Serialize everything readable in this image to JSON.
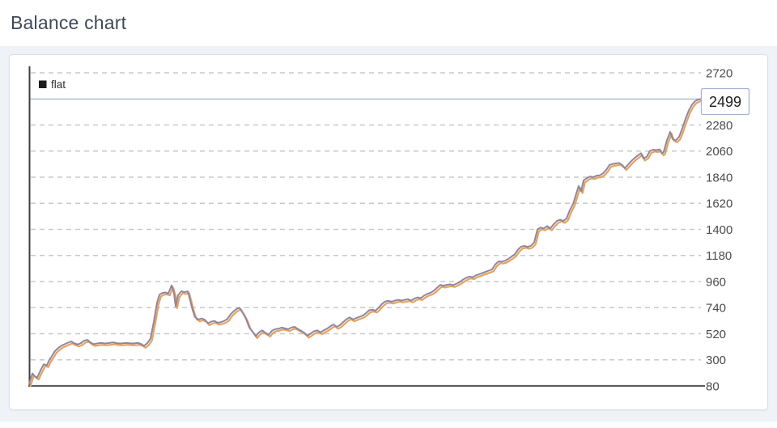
{
  "page": {
    "title": "Balance chart"
  },
  "chart": {
    "legend": [
      {
        "label": "flat",
        "swatch_color": "#1c1c1c"
      }
    ],
    "current_value": "2499"
  },
  "chart_data": {
    "type": "line",
    "title": "Balance chart",
    "legend_position": "top-left",
    "axis_labels_position": "right",
    "grid": "dashed-horizontal",
    "y_min": 80,
    "y_max": 2720,
    "y_tick_step": 220,
    "y_ticks": [
      80,
      300,
      520,
      740,
      960,
      1180,
      1400,
      1620,
      1840,
      2060,
      2280,
      2720
    ],
    "current_value": 2499,
    "current_value_line_color": "#a9b0d4",
    "series": [
      {
        "name": "flat",
        "color": "#8e86a1",
        "shadow_color": "#e5a35e",
        "points": [
          [
            36,
            95
          ],
          [
            40,
            185
          ],
          [
            43,
            162
          ],
          [
            46,
            150
          ],
          [
            50,
            210
          ],
          [
            54,
            262
          ],
          [
            58,
            255
          ],
          [
            61,
            300
          ],
          [
            64,
            330
          ],
          [
            68,
            375
          ],
          [
            72,
            400
          ],
          [
            76,
            420
          ],
          [
            80,
            432
          ],
          [
            84,
            445
          ],
          [
            88,
            455
          ],
          [
            92,
            438
          ],
          [
            96,
            430
          ],
          [
            100,
            440
          ],
          [
            104,
            462
          ],
          [
            108,
            468
          ],
          [
            112,
            445
          ],
          [
            116,
            432
          ],
          [
            120,
            438
          ],
          [
            125,
            442
          ],
          [
            130,
            438
          ],
          [
            135,
            442
          ],
          [
            140,
            447
          ],
          [
            145,
            440
          ],
          [
            150,
            438
          ],
          [
            155,
            442
          ],
          [
            160,
            440
          ],
          [
            165,
            438
          ],
          [
            170,
            442
          ],
          [
            174,
            435
          ],
          [
            178,
            418
          ],
          [
            182,
            440
          ],
          [
            186,
            480
          ],
          [
            190,
            620
          ],
          [
            194,
            780
          ],
          [
            197,
            850
          ],
          [
            200,
            862
          ],
          [
            204,
            868
          ],
          [
            208,
            860
          ],
          [
            212,
            928
          ],
          [
            215,
            860
          ],
          [
            217,
            752
          ],
          [
            220,
            845
          ],
          [
            224,
            878
          ],
          [
            228,
            870
          ],
          [
            232,
            878
          ],
          [
            235,
            800
          ],
          [
            238,
            720
          ],
          [
            241,
            660
          ],
          [
            245,
            640
          ],
          [
            249,
            648
          ],
          [
            253,
            638
          ],
          [
            257,
            608
          ],
          [
            261,
            622
          ],
          [
            265,
            628
          ],
          [
            269,
            612
          ],
          [
            273,
            618
          ],
          [
            277,
            628
          ],
          [
            281,
            645
          ],
          [
            285,
            685
          ],
          [
            289,
            712
          ],
          [
            293,
            732
          ],
          [
            296,
            738
          ],
          [
            300,
            695
          ],
          [
            304,
            645
          ],
          [
            308,
            572
          ],
          [
            312,
            538
          ],
          [
            316,
            498
          ],
          [
            320,
            532
          ],
          [
            324,
            548
          ],
          [
            328,
            528
          ],
          [
            332,
            512
          ],
          [
            336,
            545
          ],
          [
            340,
            558
          ],
          [
            344,
            562
          ],
          [
            348,
            572
          ],
          [
            352,
            565
          ],
          [
            356,
            558
          ],
          [
            360,
            572
          ],
          [
            364,
            578
          ],
          [
            368,
            560
          ],
          [
            372,
            545
          ],
          [
            376,
            528
          ],
          [
            380,
            502
          ],
          [
            384,
            522
          ],
          [
            388,
            542
          ],
          [
            392,
            548
          ],
          [
            396,
            532
          ],
          [
            400,
            548
          ],
          [
            404,
            562
          ],
          [
            408,
            582
          ],
          [
            412,
            598
          ],
          [
            416,
            578
          ],
          [
            420,
            592
          ],
          [
            424,
            618
          ],
          [
            428,
            642
          ],
          [
            432,
            658
          ],
          [
            436,
            640
          ],
          [
            440,
            652
          ],
          [
            444,
            662
          ],
          [
            448,
            672
          ],
          [
            452,
            692
          ],
          [
            456,
            718
          ],
          [
            460,
            722
          ],
          [
            464,
            715
          ],
          [
            468,
            742
          ],
          [
            472,
            772
          ],
          [
            476,
            792
          ],
          [
            480,
            797
          ],
          [
            484,
            790
          ],
          [
            488,
            800
          ],
          [
            492,
            806
          ],
          [
            496,
            800
          ],
          [
            500,
            806
          ],
          [
            504,
            812
          ],
          [
            508,
            800
          ],
          [
            512,
            816
          ],
          [
            516,
            826
          ],
          [
            520,
            820
          ],
          [
            524,
            842
          ],
          [
            528,
            856
          ],
          [
            532,
            866
          ],
          [
            536,
            882
          ],
          [
            540,
            908
          ],
          [
            544,
            932
          ],
          [
            548,
            925
          ],
          [
            552,
            932
          ],
          [
            556,
            936
          ],
          [
            560,
            930
          ],
          [
            564,
            942
          ],
          [
            568,
            956
          ],
          [
            572,
            976
          ],
          [
            576,
            992
          ],
          [
            580,
            1002
          ],
          [
            584,
            996
          ],
          [
            588,
            1012
          ],
          [
            592,
            1022
          ],
          [
            596,
            1032
          ],
          [
            600,
            1042
          ],
          [
            604,
            1052
          ],
          [
            608,
            1062
          ],
          [
            612,
            1105
          ],
          [
            616,
            1130
          ],
          [
            620,
            1128
          ],
          [
            624,
            1135
          ],
          [
            628,
            1150
          ],
          [
            632,
            1170
          ],
          [
            636,
            1190
          ],
          [
            640,
            1230
          ],
          [
            644,
            1255
          ],
          [
            648,
            1260
          ],
          [
            652,
            1252
          ],
          [
            656,
            1262
          ],
          [
            660,
            1290
          ],
          [
            664,
            1400
          ],
          [
            668,
            1415
          ],
          [
            672,
            1408
          ],
          [
            676,
            1428
          ],
          [
            680,
            1408
          ],
          [
            684,
            1442
          ],
          [
            688,
            1470
          ],
          [
            692,
            1482
          ],
          [
            696,
            1470
          ],
          [
            700,
            1492
          ],
          [
            704,
            1562
          ],
          [
            708,
            1612
          ],
          [
            712,
            1702
          ],
          [
            715,
            1765
          ],
          [
            718,
            1722
          ],
          [
            721,
            1812
          ],
          [
            725,
            1832
          ],
          [
            729,
            1846
          ],
          [
            733,
            1840
          ],
          [
            737,
            1852
          ],
          [
            741,
            1856
          ],
          [
            745,
            1872
          ],
          [
            749,
            1902
          ],
          [
            753,
            1942
          ],
          [
            757,
            1952
          ],
          [
            761,
            1956
          ],
          [
            765,
            1960
          ],
          [
            769,
            1940
          ],
          [
            772,
            1916
          ],
          [
            776,
            1946
          ],
          [
            780,
            1976
          ],
          [
            784,
            2002
          ],
          [
            788,
            2022
          ],
          [
            792,
            2042
          ],
          [
            795,
            1996
          ],
          [
            799,
            2012
          ],
          [
            803,
            2062
          ],
          [
            807,
            2072
          ],
          [
            811,
            2068
          ],
          [
            815,
            2075
          ],
          [
            818,
            2040
          ],
          [
            820,
            2052
          ],
          [
            824,
            2152
          ],
          [
            828,
            2222
          ],
          [
            831,
            2162
          ],
          [
            835,
            2150
          ],
          [
            839,
            2180
          ],
          [
            843,
            2252
          ],
          [
            847,
            2332
          ],
          [
            851,
            2402
          ],
          [
            855,
            2452
          ],
          [
            859,
            2482
          ],
          [
            863,
            2495
          ],
          [
            866,
            2499
          ]
        ]
      }
    ]
  }
}
